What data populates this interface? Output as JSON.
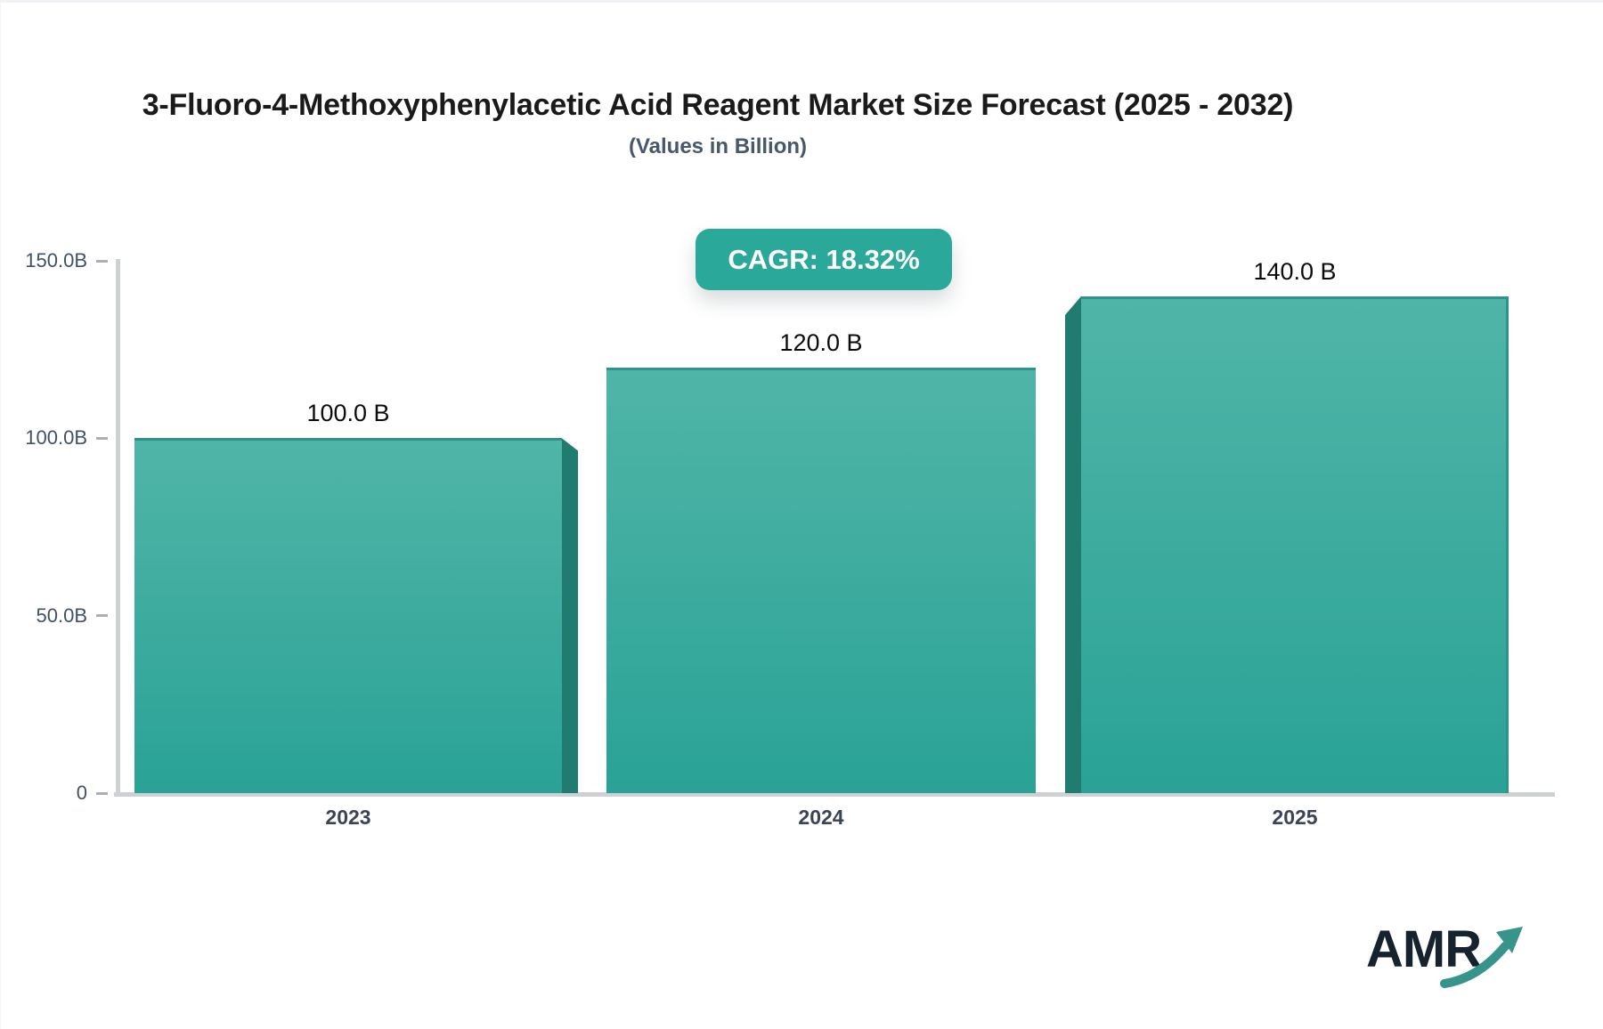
{
  "header": {
    "title": "3-Fluoro-4-Methoxyphenylacetic Acid Reagent Market Size Forecast (2025 - 2032)",
    "subtitle": "(Values in Billion)",
    "cagr_label": "CAGR: 18.32%"
  },
  "chart_data": {
    "type": "bar",
    "title": "3-Fluoro-4-Methoxyphenylacetic Acid Reagent Market Size Forecast (2025 - 2032)",
    "subtitle": "(Values in Billion)",
    "unit": "Billion",
    "cagr": "18.32%",
    "categories": [
      "2023",
      "2024",
      "2025"
    ],
    "values": [
      100.0,
      120.0,
      140.0
    ],
    "value_labels": [
      "100.0 B",
      "120.0 B",
      "140.0 B"
    ],
    "xlabel": "",
    "ylabel": "",
    "ylim": [
      0,
      150
    ],
    "grid": false,
    "legend": false,
    "yticks": [
      {
        "value": 0,
        "label": "0"
      },
      {
        "value": 50,
        "label": "50.0B"
      },
      {
        "value": 100,
        "label": "100.0B"
      },
      {
        "value": 150,
        "label": "150.0B"
      }
    ]
  },
  "theme": {
    "accent": "#2aa89a",
    "barTop": "#50b5a8",
    "barBottom": "#2aa296",
    "barEdge": "#2c9488",
    "barSide": "#217c70",
    "axis": "#cdd1d6"
  },
  "logo": {
    "text": "AMR"
  }
}
